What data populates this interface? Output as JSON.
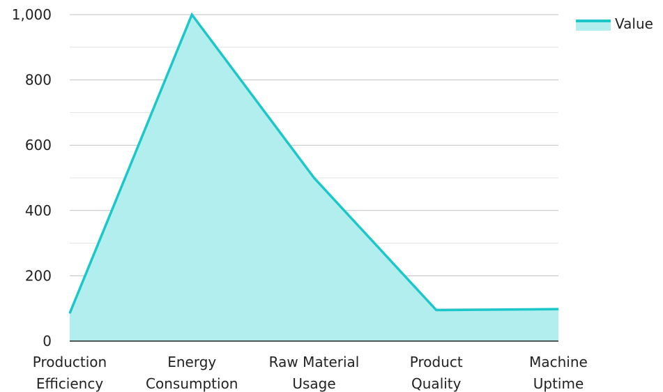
{
  "chart_data": {
    "type": "area",
    "categories": [
      [
        "Production",
        "Efficiency"
      ],
      [
        "Energy",
        "Consumption"
      ],
      [
        "Raw Material",
        "Usage"
      ],
      [
        "Product",
        "Quality"
      ],
      [
        "Machine",
        "Uptime"
      ]
    ],
    "series": [
      {
        "name": "Value",
        "values": [
          85,
          1000,
          500,
          95,
          98
        ]
      }
    ],
    "ylim": [
      0,
      1000
    ],
    "yticks": [
      0,
      200,
      400,
      600,
      800,
      1000
    ],
    "ytick_labels": [
      "0",
      "200",
      "400",
      "600",
      "800",
      "1,000"
    ],
    "grid": true,
    "legend_position": "top-right",
    "colors": {
      "line": "#1cc7c9",
      "fill": "#b2eeee",
      "grid_major": "#bfbfbf",
      "grid_minor": "#e3e3e3",
      "axis": "#222222"
    }
  }
}
